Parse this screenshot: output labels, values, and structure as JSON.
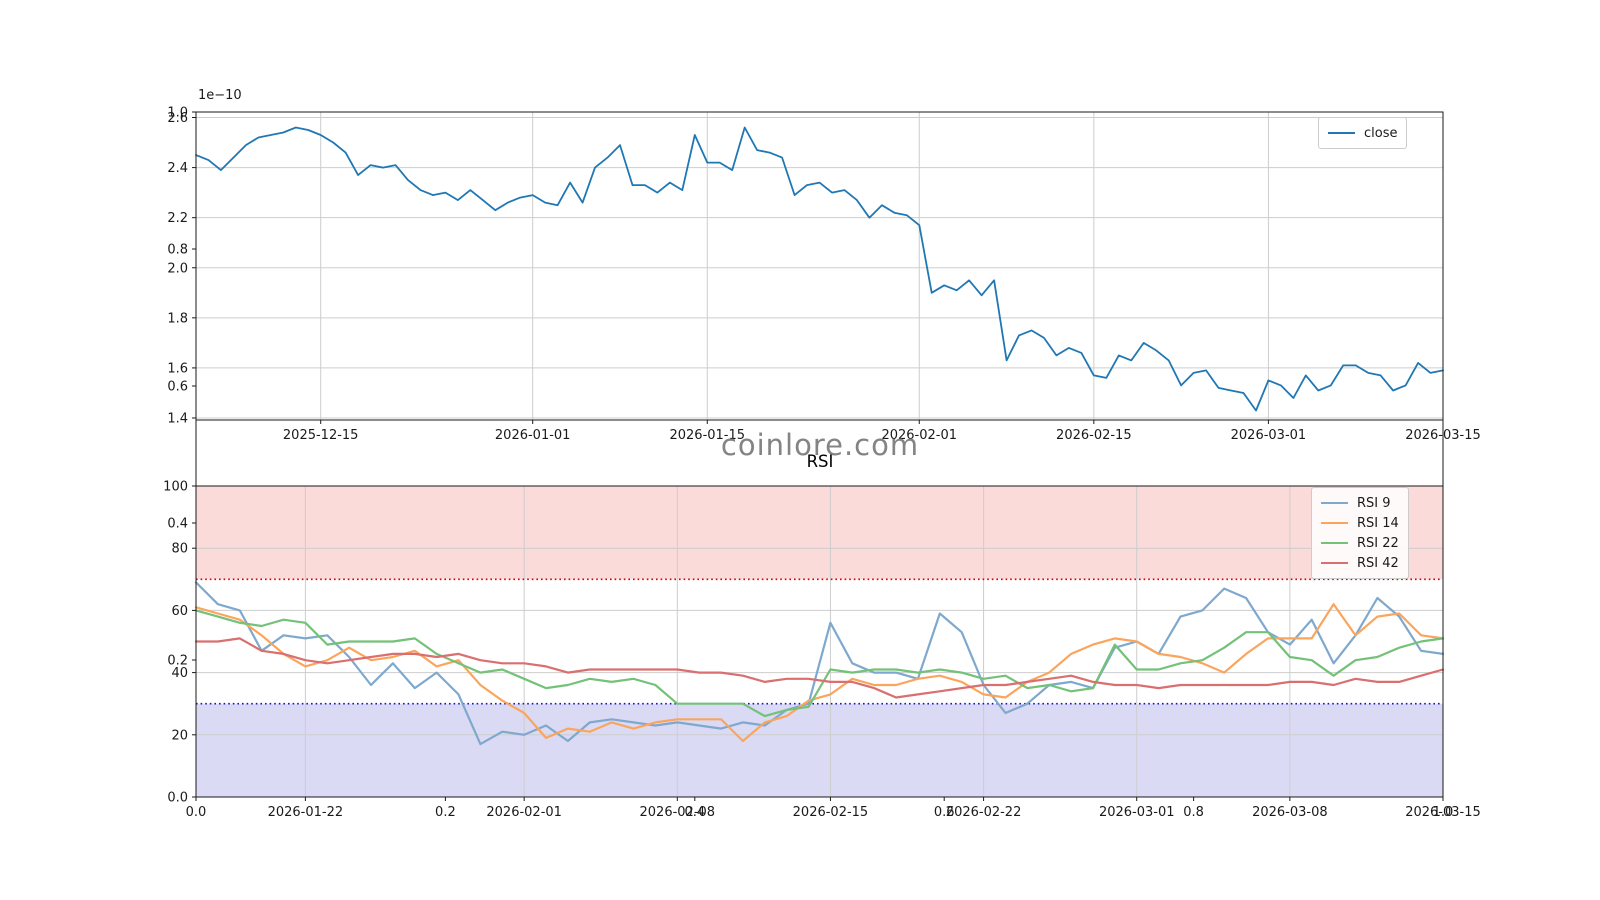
{
  "watermark": "coinlore.com",
  "panel_top": {
    "offset_text": "1e−10"
  },
  "panel_bottom": {
    "title": "RSI"
  },
  "colors": {
    "close": "#1f77b4",
    "rsi9": "#7fa8ce",
    "rsi14": "#fba55c",
    "rsi22": "#74c178",
    "rsi42": "#d96f6f",
    "overbought_band": "#fbdada",
    "oversold_band": "#dbdaf4",
    "overbought_line": "#cc0000",
    "oversold_line": "#1414cc",
    "grid": "#cdcdcd",
    "spine": "#1a1a1a",
    "watermark_gray": "#848484"
  },
  "chart_data": [
    {
      "type": "line",
      "panel": "top",
      "title": "",
      "xlabel": "",
      "ylabel": "",
      "y_offset_factor": "1e-10",
      "x_start_date": "2025-12-05",
      "x_freq": "daily",
      "xlim": [
        0,
        100
      ],
      "ylim": [
        1.392,
        2.622
      ],
      "grid": true,
      "legend_position": "upper right",
      "xticks": [
        {
          "x": 10,
          "label": "2025-12-15"
        },
        {
          "x": 27,
          "label": "2026-01-01"
        },
        {
          "x": 41,
          "label": "2026-01-15"
        },
        {
          "x": 58,
          "label": "2026-02-01"
        },
        {
          "x": 72,
          "label": "2026-02-15"
        },
        {
          "x": 86,
          "label": "2026-03-01"
        },
        {
          "x": 100,
          "label": "2026-03-15"
        }
      ],
      "yticks": [
        {
          "v": 1.4,
          "label": "1.4"
        },
        {
          "v": 1.6,
          "label": "1.6"
        },
        {
          "v": 1.8,
          "label": "1.8"
        },
        {
          "v": 2.0,
          "label": "2.0"
        },
        {
          "v": 2.2,
          "label": "2.2"
        },
        {
          "v": 2.4,
          "label": "2.4"
        },
        {
          "v": 2.6,
          "label": "2.6"
        }
      ],
      "series": [
        {
          "name": "close",
          "color": "#1f77b4",
          "lw": 1.8,
          "values": [
            2.45,
            2.43,
            2.39,
            2.44,
            2.49,
            2.52,
            2.53,
            2.54,
            2.56,
            2.55,
            2.53,
            2.5,
            2.46,
            2.37,
            2.41,
            2.4,
            2.41,
            2.35,
            2.31,
            2.29,
            2.3,
            2.27,
            2.31,
            2.27,
            2.23,
            2.26,
            2.28,
            2.29,
            2.26,
            2.25,
            2.34,
            2.26,
            2.4,
            2.44,
            2.49,
            2.33,
            2.33,
            2.3,
            2.34,
            2.31,
            2.53,
            2.42,
            2.42,
            2.39,
            2.56,
            2.47,
            2.46,
            2.44,
            2.29,
            2.33,
            2.34,
            2.3,
            2.31,
            2.27,
            2.2,
            2.25,
            2.22,
            2.21,
            2.17,
            1.9,
            1.93,
            1.91,
            1.95,
            1.89,
            1.95,
            1.63,
            1.73,
            1.75,
            1.72,
            1.65,
            1.68,
            1.66,
            1.57,
            1.56,
            1.65,
            1.63,
            1.7,
            1.67,
            1.63,
            1.53,
            1.58,
            1.59,
            1.52,
            1.51,
            1.5,
            1.43,
            1.55,
            1.53,
            1.48,
            1.57,
            1.51,
            1.53,
            1.61,
            1.61,
            1.58,
            1.57,
            1.51,
            1.53,
            1.62,
            1.58,
            1.59
          ]
        }
      ]
    },
    {
      "type": "line",
      "panel": "bottom",
      "title": "RSI",
      "x_start_date": "2026-01-17",
      "x_freq": "daily",
      "xlim": [
        0,
        57
      ],
      "ylim": [
        0,
        100
      ],
      "grid": true,
      "legend_position": "upper right",
      "bands": [
        {
          "name": "overbought-band",
          "from": 70,
          "to": 100,
          "color": "#fbdada"
        },
        {
          "name": "oversold-band",
          "from": 0,
          "to": 30,
          "color": "#dbdaf4"
        }
      ],
      "hlines": [
        {
          "name": "overbought-line",
          "y": 70,
          "color": "#cc0000",
          "style": "dotted"
        },
        {
          "name": "oversold-line",
          "y": 30,
          "color": "#1414cc",
          "style": "dotted"
        }
      ],
      "xticks": [
        {
          "x": 5,
          "label": "2026-01-22"
        },
        {
          "x": 15,
          "label": "2026-02-01"
        },
        {
          "x": 22,
          "label": "2026-02-08"
        },
        {
          "x": 29,
          "label": "2026-02-15"
        },
        {
          "x": 36,
          "label": "2026-02-22"
        },
        {
          "x": 43,
          "label": "2026-03-01"
        },
        {
          "x": 50,
          "label": "2026-03-08"
        },
        {
          "x": 57,
          "label": "2026-03-15"
        }
      ],
      "yticks": [
        {
          "v": 0,
          "label": ""
        },
        {
          "v": 20,
          "label": "20"
        },
        {
          "v": 40,
          "label": "40"
        },
        {
          "v": 60,
          "label": "60"
        },
        {
          "v": 80,
          "label": "80"
        },
        {
          "v": 100,
          "label": "100"
        }
      ],
      "series": [
        {
          "name": "RSI 9",
          "color": "#7fa8ce",
          "lw": 2.2,
          "values": [
            69,
            62,
            60,
            47,
            52,
            51,
            52,
            45,
            36,
            43,
            35,
            40,
            33,
            17,
            21,
            20,
            23,
            18,
            24,
            25,
            24,
            23,
            24,
            23,
            22,
            24,
            23,
            28,
            30,
            56,
            43,
            40,
            40,
            38,
            59,
            53,
            36,
            27,
            30,
            36,
            37,
            35,
            48,
            50,
            46,
            58,
            60,
            67,
            64,
            53,
            49,
            57,
            43,
            52,
            64,
            58,
            47,
            46
          ]
        },
        {
          "name": "RSI 14",
          "color": "#fba55c",
          "lw": 2.2,
          "values": [
            61,
            59,
            57,
            52,
            46,
            42,
            44,
            48,
            44,
            45,
            47,
            42,
            44,
            36,
            31,
            27,
            19,
            22,
            21,
            24,
            22,
            24,
            25,
            25,
            25,
            18,
            24,
            26,
            31,
            33,
            38,
            36,
            36,
            38,
            39,
            37,
            33,
            32,
            37,
            40,
            46,
            49,
            51,
            50,
            46,
            45,
            43,
            40,
            46,
            51,
            51,
            51,
            62,
            52,
            58,
            59,
            52,
            51
          ]
        },
        {
          "name": "RSI 22",
          "color": "#74c178",
          "lw": 2.2,
          "values": [
            60,
            58,
            56,
            55,
            57,
            56,
            49,
            50,
            50,
            50,
            51,
            46,
            43,
            40,
            41,
            38,
            35,
            36,
            38,
            37,
            38,
            36,
            30,
            30,
            30,
            30,
            26,
            28,
            29,
            41,
            40,
            41,
            41,
            40,
            41,
            40,
            38,
            39,
            35,
            36,
            34,
            35,
            49,
            41,
            41,
            43,
            44,
            48,
            53,
            53,
            45,
            44,
            39,
            44,
            45,
            48,
            50,
            51
          ]
        },
        {
          "name": "RSI 42",
          "color": "#d96f6f",
          "lw": 2.2,
          "values": [
            50,
            50,
            51,
            47,
            46,
            44,
            43,
            44,
            45,
            46,
            46,
            45,
            46,
            44,
            43,
            43,
            42,
            40,
            41,
            41,
            41,
            41,
            41,
            40,
            40,
            39,
            37,
            38,
            38,
            37,
            37,
            35,
            32,
            33,
            34,
            35,
            36,
            36,
            37,
            38,
            39,
            37,
            36,
            36,
            35,
            36,
            36,
            36,
            36,
            36,
            37,
            37,
            36,
            38,
            37,
            37,
            39,
            41
          ]
        }
      ]
    },
    {
      "type": "axis-overlay",
      "panel": "overlay",
      "xlim": [
        0,
        1
      ],
      "ylim": [
        0,
        1
      ],
      "grid": false,
      "xticks": [
        {
          "x": 0.0,
          "label": "0.0"
        },
        {
          "x": 0.2,
          "label": "0.2"
        },
        {
          "x": 0.4,
          "label": "0.4"
        },
        {
          "x": 0.6,
          "label": "0.6"
        },
        {
          "x": 0.8,
          "label": "0.8"
        },
        {
          "x": 1.0,
          "label": "1.0"
        }
      ],
      "yticks": [
        {
          "v": 0.0,
          "label": "0.0"
        },
        {
          "v": 0.2,
          "label": "0.2"
        },
        {
          "v": 0.4,
          "label": "0.4"
        },
        {
          "v": 0.6,
          "label": "0.6"
        },
        {
          "v": 0.8,
          "label": "0.8"
        },
        {
          "v": 1.0,
          "label": "1.0"
        }
      ],
      "series": []
    }
  ]
}
